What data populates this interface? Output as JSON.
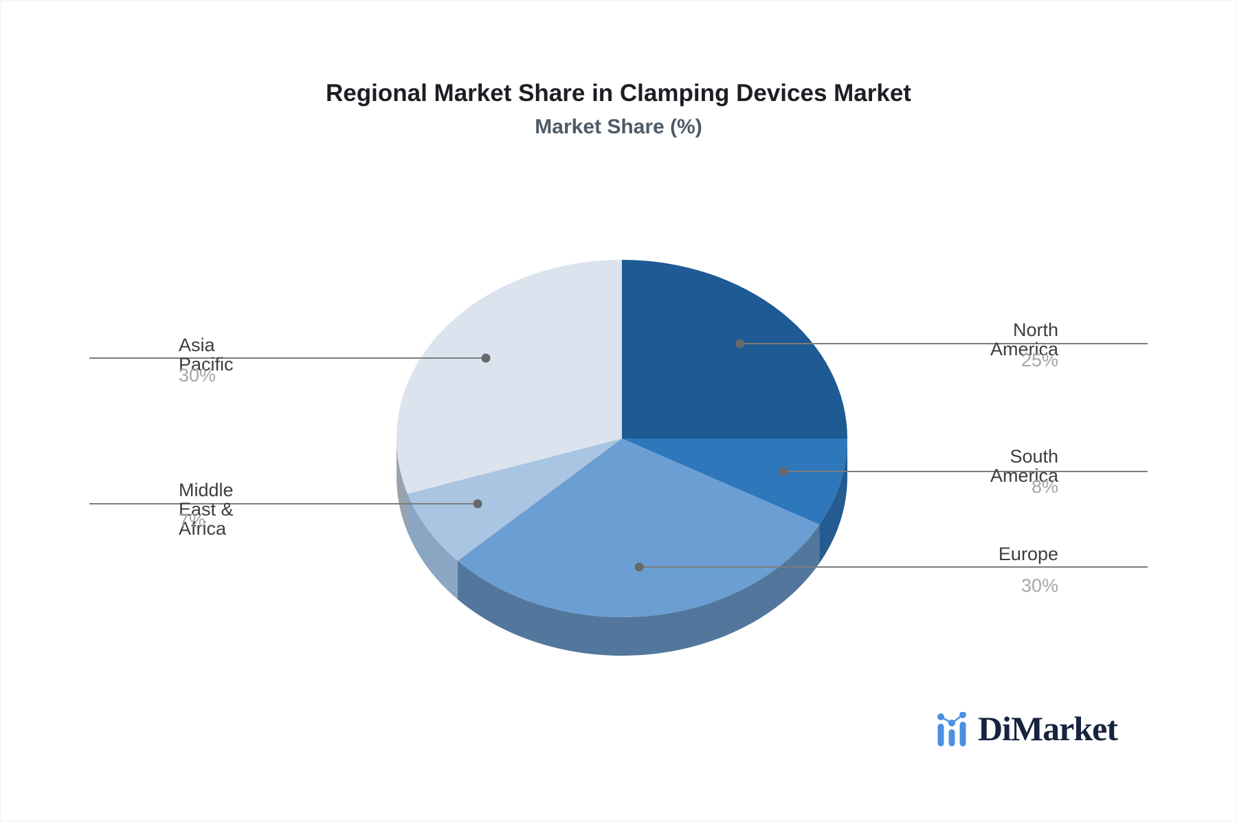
{
  "header": {
    "title": "Regional Market Share in Clamping Devices Market",
    "subtitle": "Market Share (%)"
  },
  "chart_data": {
    "type": "pie",
    "style": "3d",
    "title": "Regional Market Share in Clamping Devices Market",
    "subtitle": "Market Share (%)",
    "unit": "%",
    "start_angle_deg": 0,
    "direction": "clockwise",
    "legend_position": "callout-labels",
    "slices": [
      {
        "label": "North America",
        "value": 25,
        "pct_label": "25%",
        "color": "#1e5a94",
        "side_color": "#17466f"
      },
      {
        "label": "South America",
        "value": 8,
        "pct_label": "8%",
        "color": "#2f77bb",
        "side_color": "#245c91"
      },
      {
        "label": "Europe",
        "value": 30,
        "pct_label": "30%",
        "color": "#6b9fd3",
        "side_color": "#53779c"
      },
      {
        "label": "Middle East & Africa",
        "value": 7,
        "pct_label": "7%",
        "color": "#a9c5e1",
        "side_color": "#8aa6c2"
      },
      {
        "label": "Asia Pacific",
        "value": 30,
        "pct_label": "30%",
        "color": "#dbe3ee",
        "side_color": "#99a3ae"
      }
    ]
  },
  "branding": {
    "logo_text": "DiMarket",
    "logo_icon": "bar-chart-trend-icon",
    "logo_icon_color": "#4a90e2",
    "logo_text_color": "#172440"
  },
  "colors": {
    "background": "#ffffff",
    "title_text": "#1b1e23",
    "subtitle_text": "#4e5a66",
    "label_text": "#3d3d3d",
    "pct_text": "#a6a6a6",
    "leader_line": "#7c7c7c",
    "leader_dot": "#686868"
  }
}
